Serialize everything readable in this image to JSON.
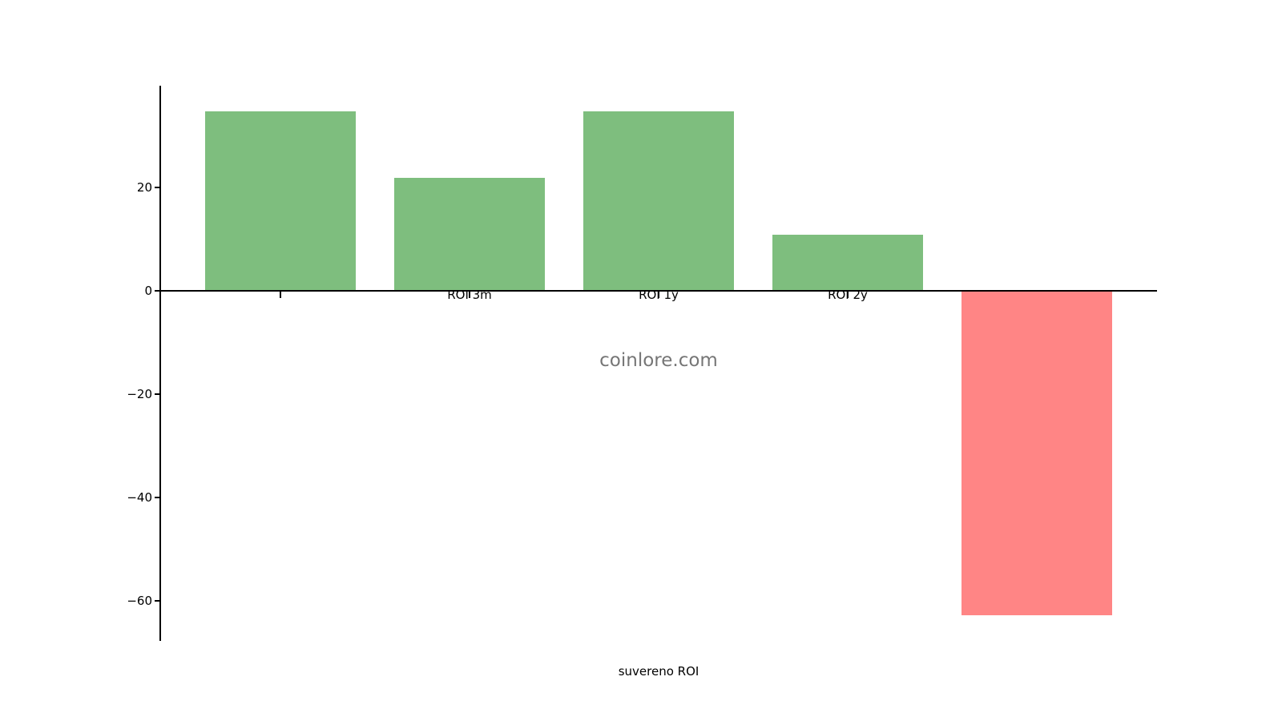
{
  "chart_data": {
    "type": "bar",
    "title": "",
    "xlabel": "suvereno ROI",
    "ylabel": "",
    "watermark": "coinlore.com",
    "categories": [
      "",
      "ROI 3m",
      "ROI 1y",
      "ROI 2y",
      ""
    ],
    "values": [
      34.8,
      21.9,
      34.8,
      10.8,
      -62.8
    ],
    "bar_colors": [
      "#7ebe7e",
      "#7ebe7e",
      "#7ebe7e",
      "#7ebe7e",
      "#ff8585"
    ],
    "positive_color": "#7ebe7e",
    "negative_color": "#ff8585",
    "ylim": [
      -67.7,
      39.7
    ],
    "yticks": [
      {
        "value": 20,
        "label": "20"
      },
      {
        "value": 0,
        "label": "0"
      },
      {
        "value": -20,
        "label": "−20"
      },
      {
        "value": -40,
        "label": "−40"
      },
      {
        "value": -60,
        "label": "−60"
      }
    ],
    "grid": false,
    "legend": false,
    "axis_color": "#000000",
    "watermark_color": "#767676"
  }
}
